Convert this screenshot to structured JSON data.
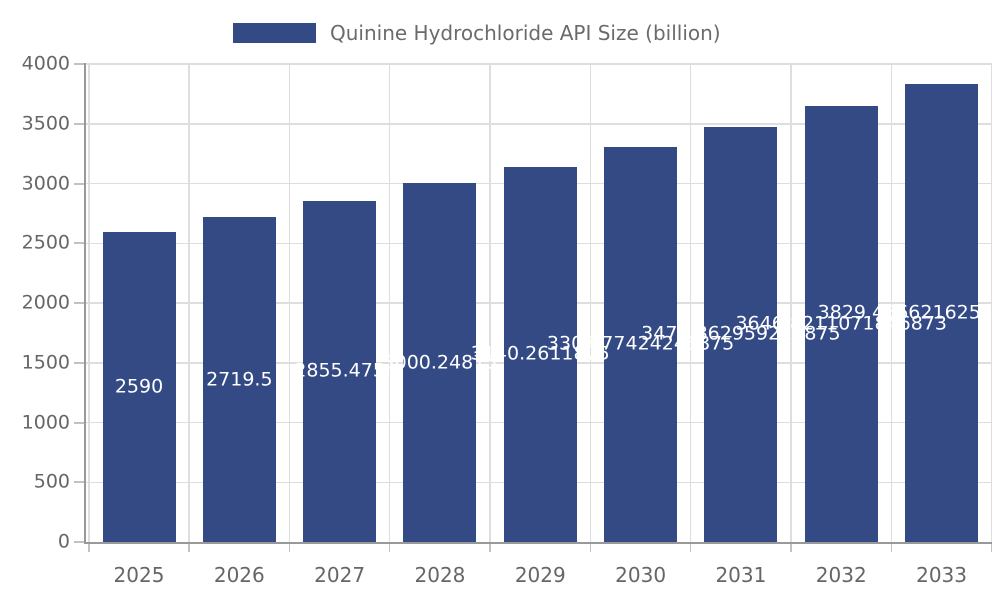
{
  "legend": {
    "label": "Quinine Hydrochloride API Size (billion)"
  },
  "colors": {
    "bar": "#344a85",
    "bar_label": "#ffffff",
    "legend_text": "#6b6b6b",
    "tick_text": "#666666",
    "grid": "#dedede",
    "axis": "#999999",
    "tick_mark": "#c2c2c2"
  },
  "chart_data": {
    "type": "bar",
    "title": "Quinine Hydrochloride API Size (billion)",
    "legend_position": "top",
    "grid": true,
    "categories": [
      "2025",
      "2026",
      "2027",
      "2028",
      "2029",
      "2030",
      "2031",
      "2032",
      "2033"
    ],
    "values": [
      2590,
      2719.5,
      2855.475,
      3000.24875,
      3140.2611875,
      3307.77424246875,
      3474.862959218875,
      3646.821107184687,
      3829.456621625195
    ],
    "value_labels": [
      "2590",
      "2719.5",
      "2855.475",
      "3000.24875",
      "3140.2611875",
      "3307.77424246875",
      "3474.862959218875",
      "3646.8211071846873",
      "3829.4566216251953125"
    ],
    "xlabel": "",
    "ylabel": "",
    "ylim": [
      0,
      4000
    ],
    "yticks": [
      4000,
      3500,
      3000,
      2500,
      2000,
      1500,
      1000,
      500,
      0
    ],
    "ytick_labels": [
      "4000",
      "3500",
      "3000",
      "2500",
      "2000",
      "1500",
      "1000",
      "500",
      "0"
    ]
  }
}
